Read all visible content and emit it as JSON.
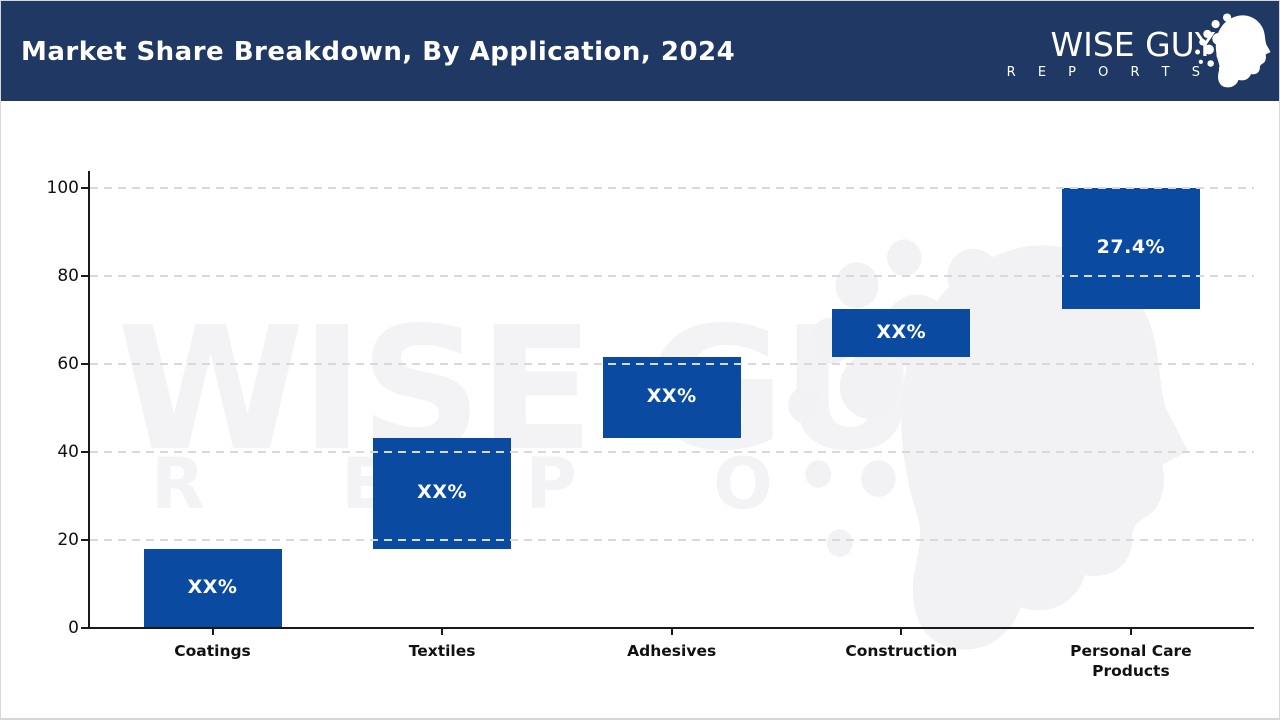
{
  "header": {
    "title": "Market Share Breakdown, By Application, 2024",
    "logo": {
      "name": "WISE GUY",
      "sub": "R E P O R T S"
    }
  },
  "watermark": {
    "line1": "WISE GUY",
    "line2": "R E P O R T S"
  },
  "colors": {
    "header_bg": "#1f3864",
    "bar": "#0a4aa1",
    "grid": "#d9d9d9",
    "axis": "#1a1a1a",
    "watermark": "#f3f3f6",
    "bar_label_text": "#ffffff"
  },
  "chart_data": {
    "type": "bar",
    "subtype": "waterfall",
    "title": "Market Share Breakdown, By Application, 2024",
    "categories": [
      "Coatings",
      "Textiles",
      "Adhesives",
      "Construction",
      "Personal Care Products"
    ],
    "bars": [
      {
        "category": "Coatings",
        "label_lines": [
          "Coatings"
        ],
        "start": 0,
        "end": 18.0,
        "value_label": "XX%",
        "value_masked": true
      },
      {
        "category": "Textiles",
        "label_lines": [
          "Textiles"
        ],
        "start": 18.0,
        "end": 43.2,
        "value_label": "XX%",
        "value_masked": true
      },
      {
        "category": "Adhesives",
        "label_lines": [
          "Adhesives"
        ],
        "start": 43.2,
        "end": 61.6,
        "value_label": "XX%",
        "value_masked": true
      },
      {
        "category": "Construction",
        "label_lines": [
          "Construction"
        ],
        "start": 61.6,
        "end": 72.6,
        "value_label": "XX%",
        "value_masked": true
      },
      {
        "category": "Personal Care Products",
        "label_lines": [
          "Personal Care",
          "Products"
        ],
        "start": 72.6,
        "end": 100.0,
        "value_label": "27.4%",
        "value": 27.4
      }
    ],
    "yticks": [
      0,
      20,
      40,
      60,
      80,
      100
    ],
    "ylim": [
      0,
      104
    ],
    "xlabel": "",
    "ylabel": "",
    "grid": "horizontal-dashed",
    "grid_above_bars": true,
    "legend": null
  }
}
